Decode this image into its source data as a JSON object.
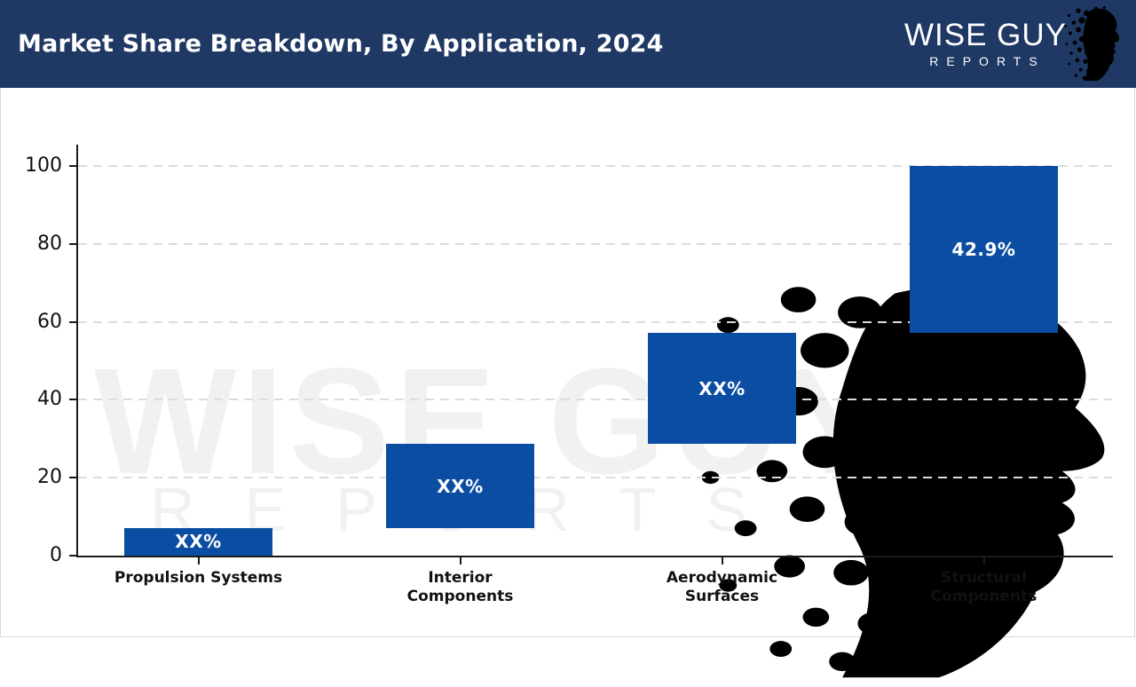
{
  "header": {
    "title": "Market Share Breakdown, By Application, 2024",
    "logo": {
      "brand": "WISE GUY",
      "sub": "REPORTS"
    }
  },
  "watermark": {
    "brand": "WISE GUY",
    "sub": "REPORTS"
  },
  "colors": {
    "header_bg": "#1f3864",
    "title_text": "#ffffff",
    "bar": "#0b4da2",
    "bar_label_text": "#ffffff",
    "axis": "#1a1a1a",
    "grid": "#dcdcdc",
    "label_text": "#111111",
    "watermark": "#f1f1f1",
    "card_border": "#d8d8d8"
  },
  "chart_data": {
    "type": "bar",
    "subtype": "floating-waterfall",
    "title": "Market Share Breakdown, By Application, 2024",
    "xlabel": "",
    "ylabel": "",
    "ylim": [
      0,
      100
    ],
    "yticks": [
      0,
      20,
      40,
      60,
      80,
      100
    ],
    "grid": "horizontal-dashed",
    "legend": "none",
    "categories": [
      "Propulsion Systems",
      "Interior Components",
      "Aerodynamic Surfaces",
      "Structural Components"
    ],
    "bars": [
      {
        "category": "Propulsion Systems",
        "category_lines": [
          "Propulsion Systems"
        ],
        "start": 0,
        "end": 7.1,
        "value": 7.1,
        "label": "XX%"
      },
      {
        "category": "Interior Components",
        "category_lines": [
          "Interior",
          "Components"
        ],
        "start": 7.1,
        "end": 28.6,
        "value": 21.5,
        "label": "XX%"
      },
      {
        "category": "Aerodynamic Surfaces",
        "category_lines": [
          "Aerodynamic",
          "Surfaces"
        ],
        "start": 28.6,
        "end": 57.1,
        "value": 28.5,
        "label": "XX%"
      },
      {
        "category": "Structural Components",
        "category_lines": [
          "Structural",
          "Components"
        ],
        "start": 57.1,
        "end": 100,
        "value": 42.9,
        "label": "42.9%"
      }
    ]
  }
}
